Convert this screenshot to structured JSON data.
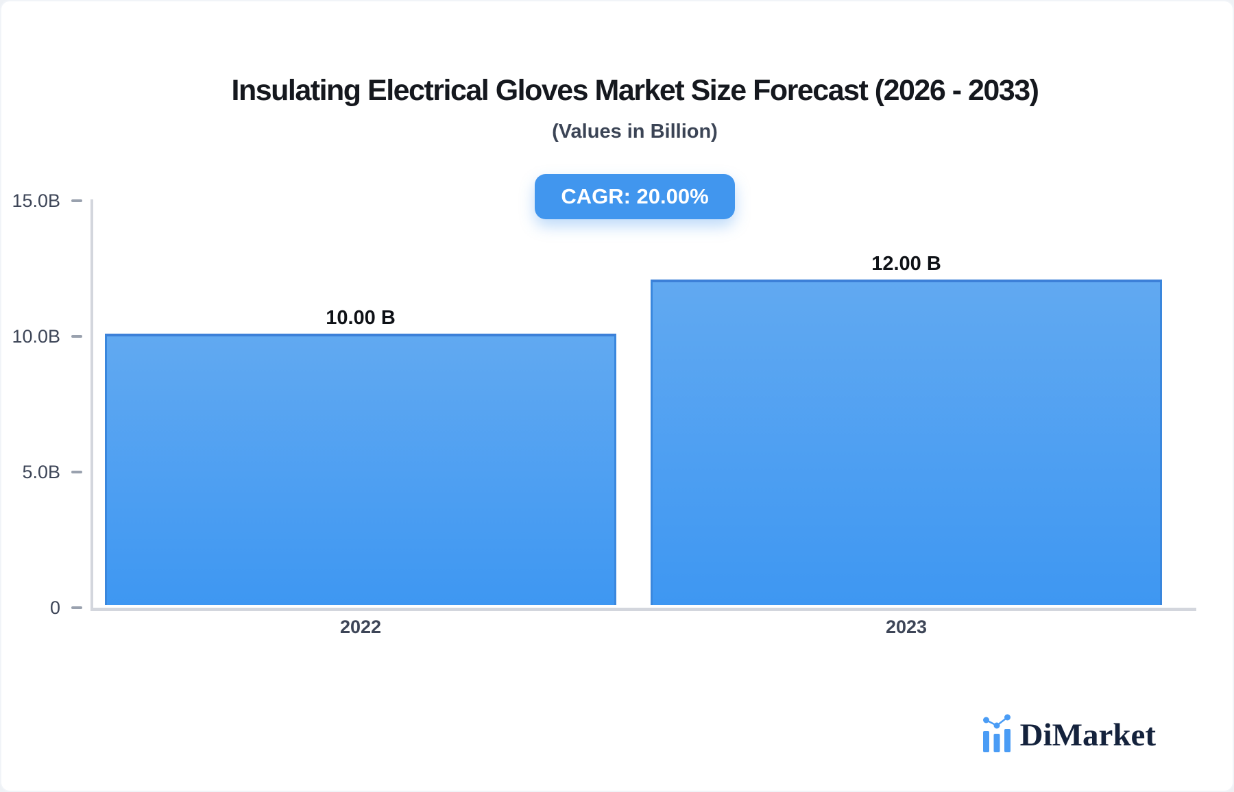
{
  "header": {
    "title": "Insulating Electrical Gloves Market Size Forecast (2026 - 2033)",
    "subtitle": "(Values in Billion)",
    "cagr_badge": "CAGR: 20.00%"
  },
  "chart_data": {
    "type": "bar",
    "title": "Insulating Electrical Gloves Market Size Forecast (2026 - 2033)",
    "subtitle": "(Values in Billion)",
    "cagr": "20.00%",
    "categories": [
      "2022",
      "2023"
    ],
    "values": [
      10.0,
      12.0
    ],
    "value_labels": [
      "10.00 B",
      "12.00 B"
    ],
    "ylabel": "",
    "xlabel": "",
    "ylim": [
      0,
      15
    ],
    "ytick_labels": [
      "15.0B",
      "10.0B",
      "5.0B",
      "0"
    ],
    "grid": false,
    "legend": "none",
    "bar_color_top": "#61a9f1",
    "bar_color_bottom": "#3e97f2",
    "bar_border_color": "#3a87dd"
  },
  "colors": {
    "badge_bg": "#4196ee",
    "badge_text": "#ffffff",
    "axis_line": "#d3d6dd",
    "tick_mark": "#99a1ae",
    "axis_label_text": "#3d4557",
    "title_text": "#15181e",
    "logo_text": "#14223c",
    "logo_icon_blue": "#4a9cf5"
  },
  "footer": {
    "brand": "DiMarket"
  }
}
